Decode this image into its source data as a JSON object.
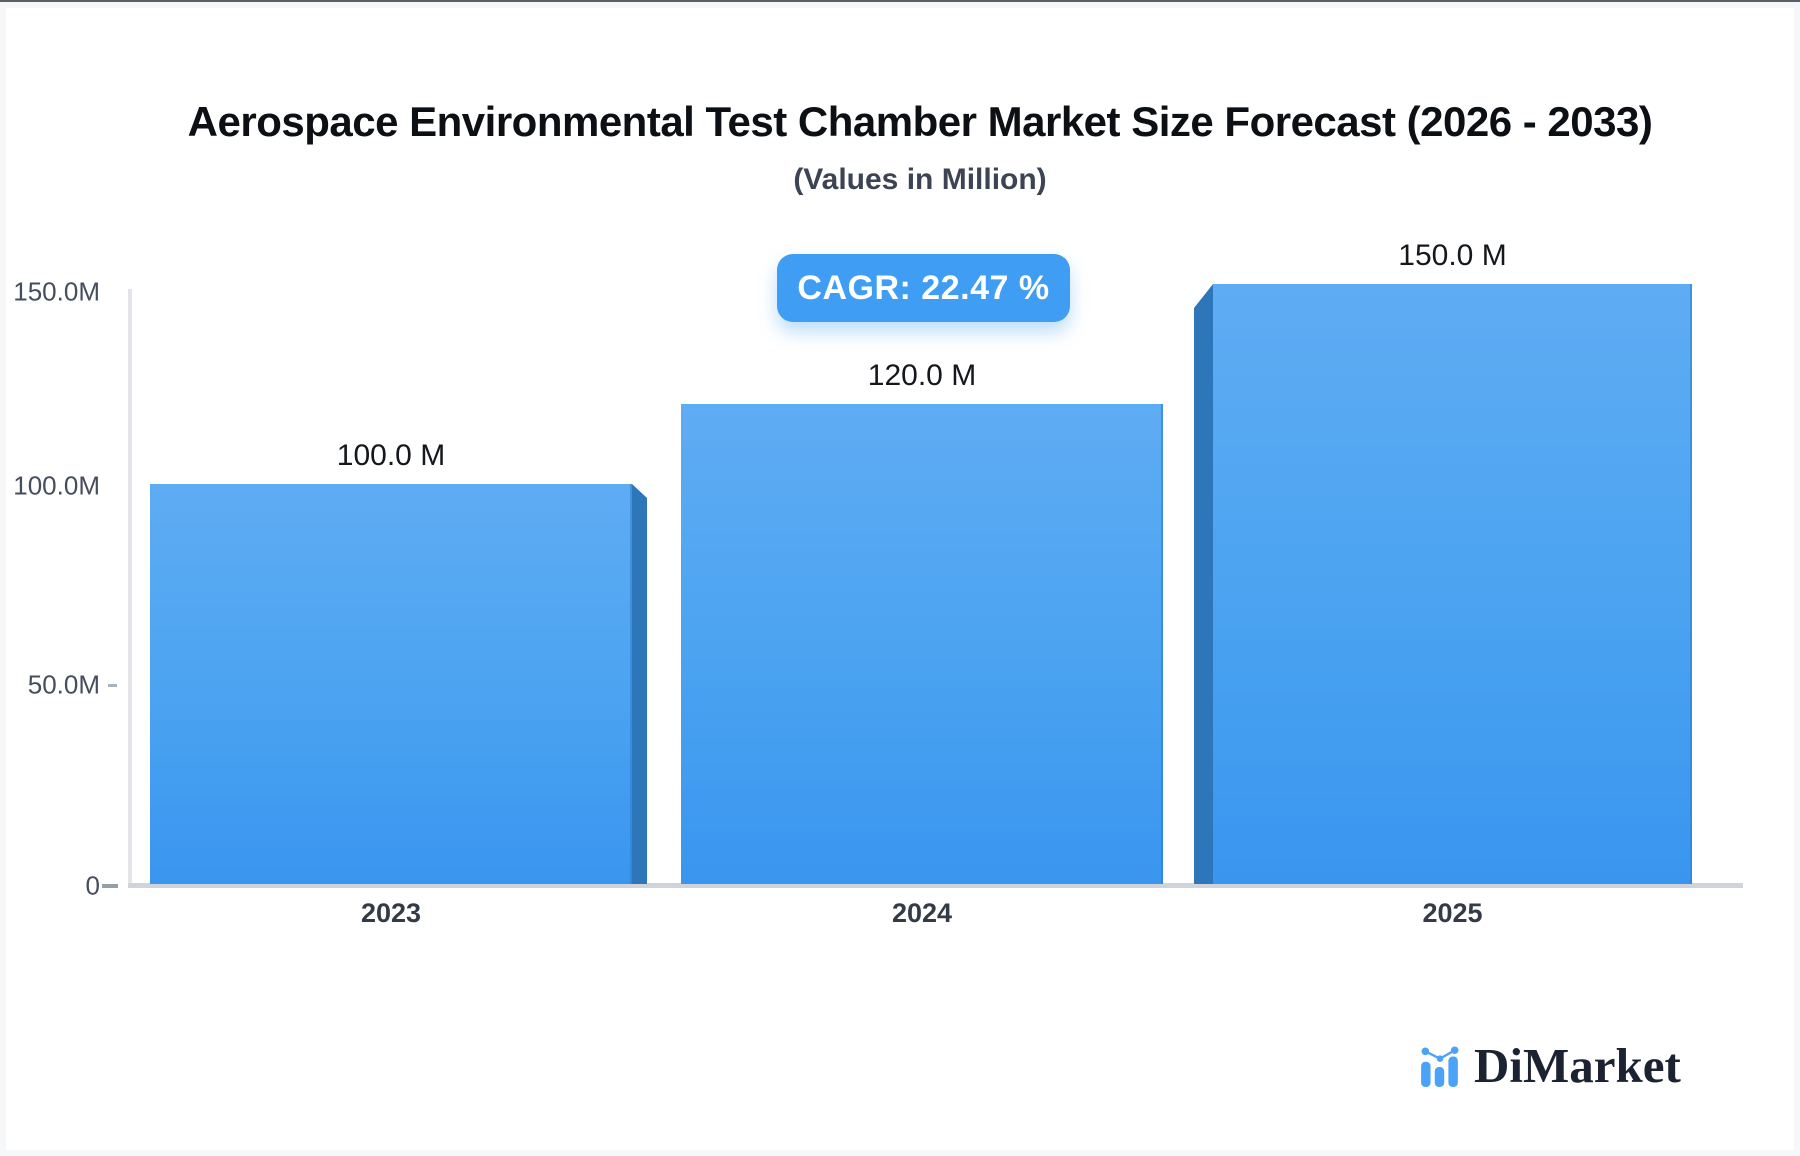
{
  "page": {
    "title": "Aerospace Environmental Test Chamber Market Size Forecast (2026 - 2033)",
    "subtitle": "(Values in Million)",
    "cagr_badge": "CAGR: 22.47 %"
  },
  "chart_data": {
    "type": "bar",
    "title": "Aerospace Environmental Test Chamber Market Size Forecast (2026 - 2033)",
    "subtitle": "(Values in Million)",
    "unit": "Million",
    "categories": [
      "2023",
      "2024",
      "2025"
    ],
    "values": [
      100.0,
      120.0,
      150.0
    ],
    "bar_labels": [
      "100.0 M",
      "120.0 M",
      "150.0 M"
    ],
    "y_ticks": [
      "150.0M",
      "100.0M",
      "50.0M",
      "0"
    ],
    "ylim": [
      0,
      150
    ],
    "grid": false,
    "legend": false,
    "cagr_percent": 22.47,
    "colors": {
      "bar_top": "#5eacf3",
      "bar_bottom": "#3996ef",
      "bar_side_3d": "#2e76ba",
      "badge_bg": "#3f9df3",
      "axis_line": "#d0d4da",
      "tick_text": "#454e5c"
    }
  },
  "branding": {
    "logo_text": "DiMarket",
    "logo_icon": "mini-bar-chart-icon",
    "logo_blue": "#4aa3f6",
    "logo_navy": "#1b2333"
  }
}
